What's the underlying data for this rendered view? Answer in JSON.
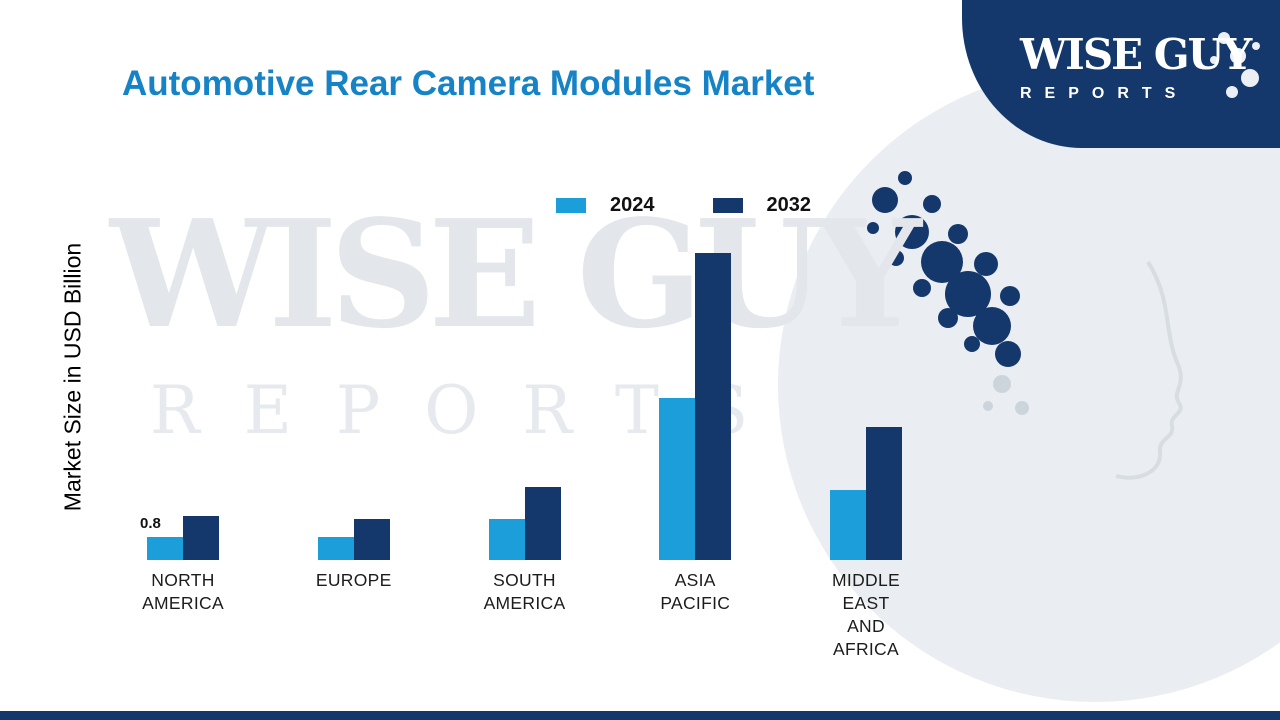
{
  "page": {
    "title": "Automotive Rear Camera Modules Market",
    "bottom_bar_color": "#14386b",
    "title_color": "#1583c5"
  },
  "logo": {
    "line1": "WISE GUY",
    "line2": "REPORTS"
  },
  "watermark": {
    "line1": "WISE GUY",
    "line2": "REPORTS"
  },
  "chart_data": {
    "type": "bar",
    "title": "Automotive Rear Camera Modules Market",
    "ylabel": "Market Size in USD Billion",
    "xlabel": "",
    "unit": "USD Billion",
    "legend_position": "top",
    "grid": false,
    "categories": [
      "NORTH AMERICA",
      "EUROPE",
      "SOUTH AMERICA",
      "ASIA PACIFIC",
      "MIDDLE EAST AND AFRICA"
    ],
    "category_lines": [
      [
        "NORTH",
        "AMERICA"
      ],
      [
        "EUROPE"
      ],
      [
        "SOUTH",
        "AMERICA"
      ],
      [
        "ASIA",
        "PACIFIC"
      ],
      [
        "MIDDLE",
        "EAST",
        "AND",
        "AFRICA"
      ]
    ],
    "series": [
      {
        "name": "2024",
        "color": "#1b9ed9",
        "values": [
          0.8,
          0.8,
          1.4,
          5.6,
          2.4
        ]
      },
      {
        "name": "2032",
        "color": "#14386b",
        "values": [
          1.5,
          1.4,
          2.5,
          10.6,
          4.6
        ]
      }
    ],
    "annotations": [
      {
        "category_index": 0,
        "series_index": 0,
        "text": "0.8"
      }
    ]
  }
}
